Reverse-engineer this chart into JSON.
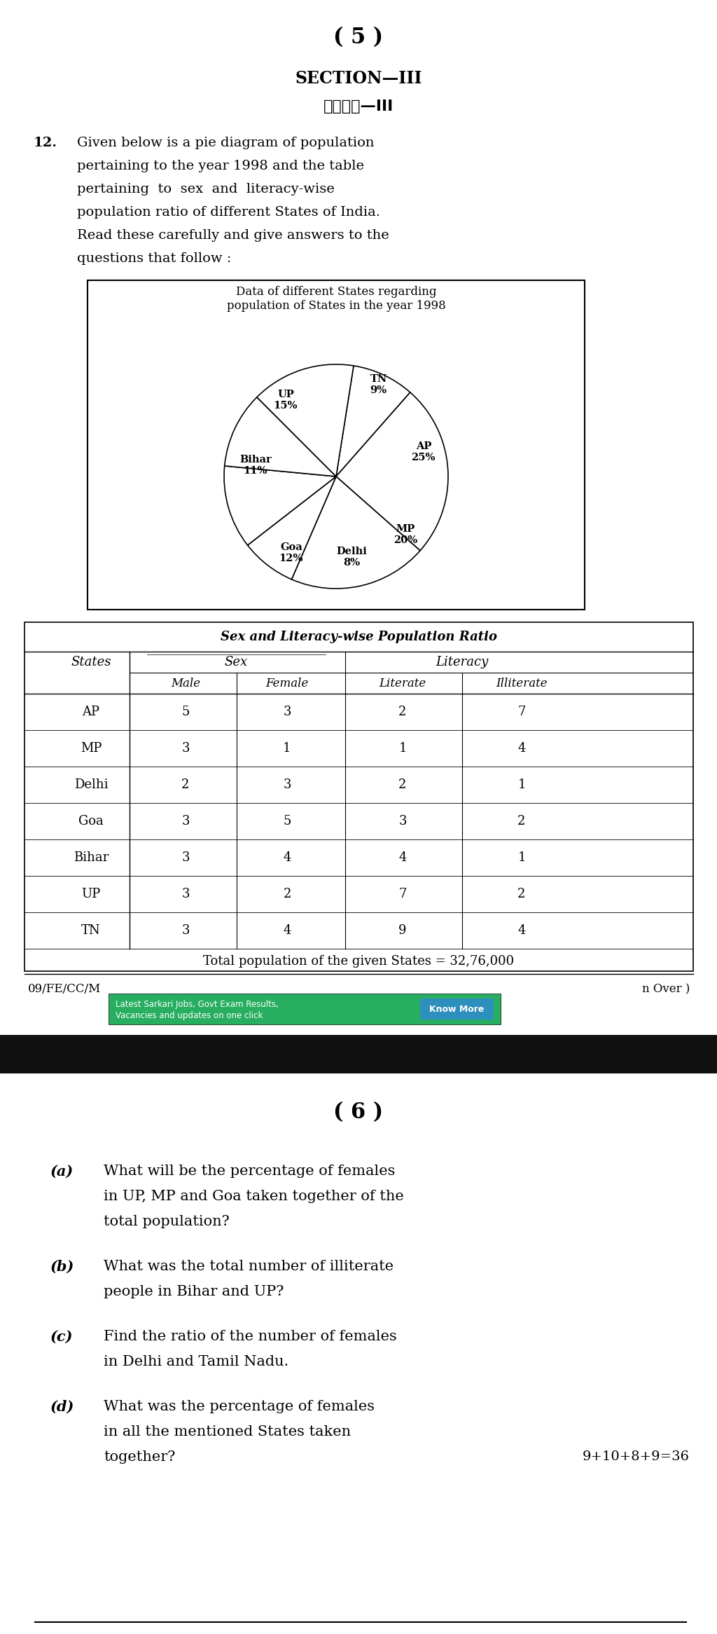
{
  "page1_number": "( 5 )",
  "section_title": "Section—III",
  "section_hindi": "खण्ड—III",
  "pie_title": "Data of different States regarding\npopulation of States in the year 1998",
  "pie_sizes": [
    9,
    25,
    20,
    8,
    12,
    11,
    15
  ],
  "table_title": "Sex and Literacy-wise Population Ratio",
  "table_col1": "States",
  "table_col2": "Sex",
  "table_col3": "Literacy",
  "table_sub_cols": [
    "Male",
    "Female",
    "Literate",
    "Illiterate"
  ],
  "table_states": [
    "AP",
    "MP",
    "Delhi",
    "Goa",
    "Bihar",
    "UP",
    "TN"
  ],
  "table_male": [
    5,
    3,
    2,
    3,
    3,
    3,
    3
  ],
  "table_female": [
    3,
    1,
    3,
    5,
    4,
    2,
    4
  ],
  "table_literate": [
    2,
    1,
    2,
    3,
    4,
    7,
    9
  ],
  "table_illiterate": [
    7,
    4,
    1,
    2,
    1,
    2,
    4
  ],
  "total_pop": "Total population of the given States = 32,76,000",
  "footer_left": "09/FE/CC/M",
  "footer_right": "n Over )",
  "ad_text1": "Latest Sarkari Jobs, Govt Exam Results,",
  "ad_text2": "Vacancies and updates on one click",
  "ad_btn": "Know More",
  "page2_number": "( 6 )",
  "q_labels": [
    "(a)",
    "(b)",
    "(c)",
    "(d)"
  ],
  "q_texts": [
    [
      "What will be the percentage of females",
      "in UP, MP and Goa taken together of the",
      "total population?"
    ],
    [
      "What was the total number of illiterate",
      "people in Bihar and UP?"
    ],
    [
      "Find the ratio of the number of females",
      "in Delhi and Tamil Nadu."
    ],
    [
      "What was the percentage of females",
      "in all the mentioned States taken",
      "together?"
    ]
  ],
  "q_d_note": "9+10+8+9=36",
  "bg_color": "#ffffff",
  "text_color": "#000000"
}
